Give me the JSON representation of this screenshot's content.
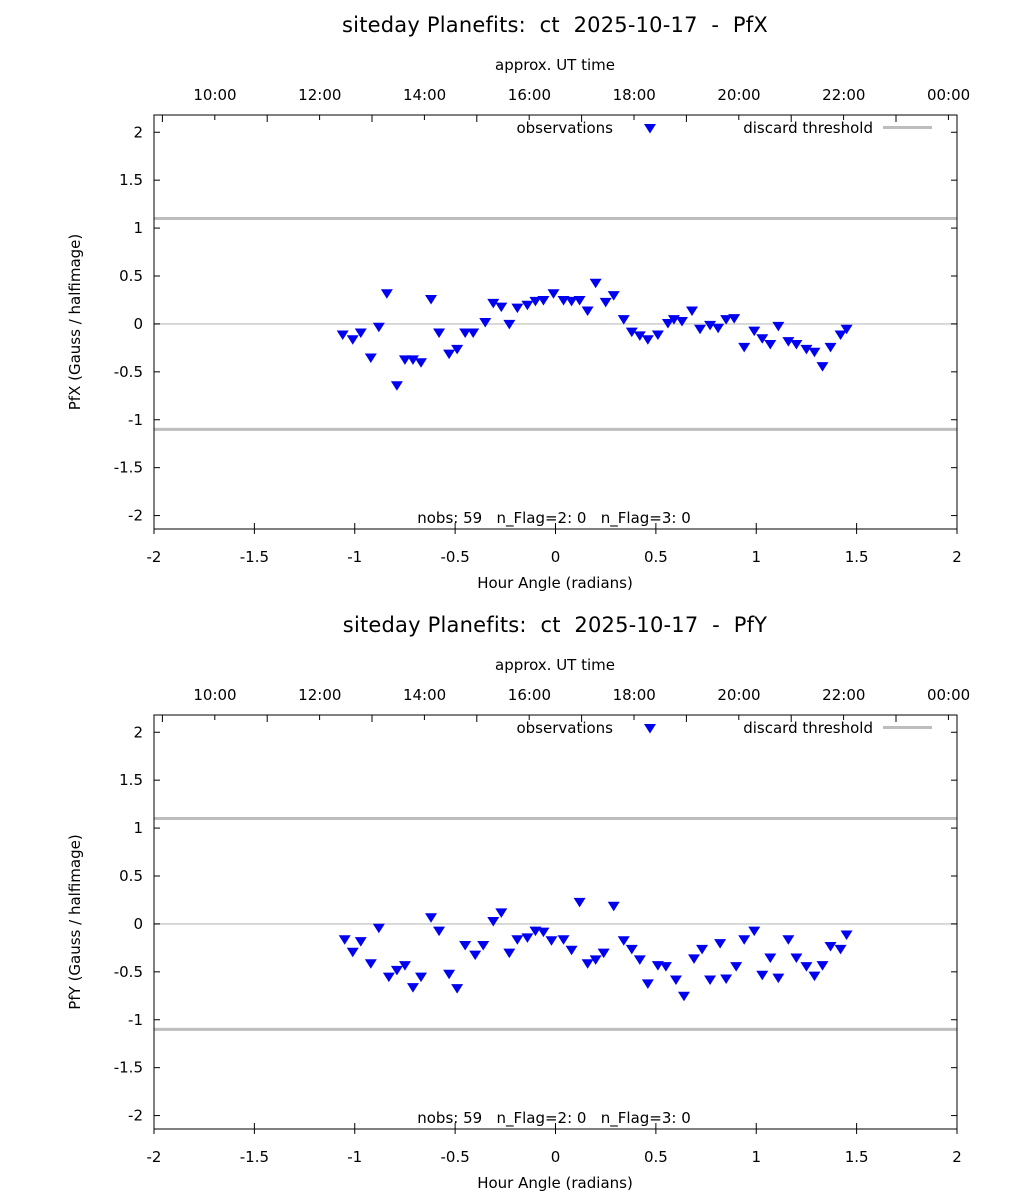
{
  "page": {
    "background_color": "#ffffff"
  },
  "colors": {
    "marker_blue": "#0000f0",
    "threshold_gray": "#bdbdbd",
    "zero_line_gray": "#c8c8c8",
    "axis_black": "#000000"
  },
  "charts": [
    {
      "title": "siteday Planefits:  ct  2025-10-17  -  PfX",
      "top_axis": {
        "label": "approx. UT time",
        "ticks": [
          "10:00",
          "12:00",
          "14:00",
          "16:00",
          "18:00",
          "20:00",
          "22:00",
          "00:00"
        ]
      },
      "x_axis": {
        "label": "Hour Angle (radians)",
        "tick_labels": [
          "-2",
          "-1.5",
          "-1",
          "-0.5",
          "0",
          "0.5",
          "1",
          "1.5",
          "2"
        ]
      },
      "y_axis": {
        "label": "PfX (Gauss / halfimage)",
        "tick_labels": [
          "2",
          "1.5",
          "1",
          "0.5",
          "0",
          "-0.5",
          "-1",
          "-1.5",
          "-2"
        ]
      },
      "legend": {
        "observations_label": "observations",
        "threshold_label": "discard threshold"
      },
      "stats_text": "nobs: 59   n_Flag=2: 0   n_Flag=3: 0",
      "chart_data": {
        "type": "scatter",
        "marker": "triangle-down",
        "xlabel": "Hour Angle (radians)",
        "x2label": "approx. UT time",
        "ylabel": "PfX (Gauss / halfimage)",
        "xlim": [
          -2,
          2
        ],
        "ylim": [
          -2.14,
          2.18
        ],
        "x_tick_values": [
          -2,
          -1.5,
          -1,
          -0.5,
          0,
          0.5,
          1,
          1.5,
          2
        ],
        "y_tick_values": [
          2,
          1.5,
          1,
          0.5,
          0,
          -0.5,
          -1,
          -1.5,
          -2
        ],
        "threshold_lines_y": [
          1.1,
          -1.1
        ],
        "zero_line_y": 0,
        "grid": false,
        "legend_position": "top-inside",
        "series": [
          {
            "name": "observations",
            "points": [
              [
                -1.06,
                -0.11
              ],
              [
                -1.01,
                -0.16
              ],
              [
                -0.97,
                -0.09
              ],
              [
                -0.92,
                -0.35
              ],
              [
                -0.88,
                -0.03
              ],
              [
                -0.84,
                0.32
              ],
              [
                -0.79,
                -0.64
              ],
              [
                -0.75,
                -0.37
              ],
              [
                -0.71,
                -0.37
              ],
              [
                -0.67,
                -0.4
              ],
              [
                -0.62,
                0.26
              ],
              [
                -0.58,
                -0.09
              ],
              [
                -0.53,
                -0.31
              ],
              [
                -0.49,
                -0.26
              ],
              [
                -0.45,
                -0.09
              ],
              [
                -0.41,
                -0.09
              ],
              [
                -0.35,
                0.02
              ],
              [
                -0.31,
                0.22
              ],
              [
                -0.27,
                0.18
              ],
              [
                -0.23,
                0.0
              ],
              [
                -0.19,
                0.17
              ],
              [
                -0.14,
                0.2
              ],
              [
                -0.1,
                0.24
              ],
              [
                -0.06,
                0.25
              ],
              [
                -0.01,
                0.32
              ],
              [
                0.04,
                0.25
              ],
              [
                0.08,
                0.24
              ],
              [
                0.12,
                0.25
              ],
              [
                0.16,
                0.14
              ],
              [
                0.2,
                0.43
              ],
              [
                0.25,
                0.23
              ],
              [
                0.29,
                0.3
              ],
              [
                0.34,
                0.05
              ],
              [
                0.38,
                -0.08
              ],
              [
                0.42,
                -0.12
              ],
              [
                0.46,
                -0.16
              ],
              [
                0.51,
                -0.11
              ],
              [
                0.56,
                0.01
              ],
              [
                0.59,
                0.05
              ],
              [
                0.63,
                0.03
              ],
              [
                0.68,
                0.14
              ],
              [
                0.72,
                -0.05
              ],
              [
                0.77,
                -0.01
              ],
              [
                0.81,
                -0.04
              ],
              [
                0.85,
                0.05
              ],
              [
                0.89,
                0.06
              ],
              [
                0.94,
                -0.24
              ],
              [
                0.99,
                -0.07
              ],
              [
                1.03,
                -0.15
              ],
              [
                1.07,
                -0.21
              ],
              [
                1.11,
                -0.02
              ],
              [
                1.16,
                -0.18
              ],
              [
                1.2,
                -0.21
              ],
              [
                1.25,
                -0.26
              ],
              [
                1.29,
                -0.29
              ],
              [
                1.33,
                -0.44
              ],
              [
                1.37,
                -0.24
              ],
              [
                1.42,
                -0.11
              ],
              [
                1.45,
                -0.05
              ]
            ]
          }
        ]
      }
    },
    {
      "title": "siteday Planefits:  ct  2025-10-17  -  PfY",
      "top_axis": {
        "label": "approx. UT time",
        "ticks": [
          "10:00",
          "12:00",
          "14:00",
          "16:00",
          "18:00",
          "20:00",
          "22:00",
          "00:00"
        ]
      },
      "x_axis": {
        "label": "Hour Angle (radians)",
        "tick_labels": [
          "-2",
          "-1.5",
          "-1",
          "-0.5",
          "0",
          "0.5",
          "1",
          "1.5",
          "2"
        ]
      },
      "y_axis": {
        "label": "PfY (Gauss / halfimage)",
        "tick_labels": [
          "2",
          "1.5",
          "1",
          "0.5",
          "0",
          "-0.5",
          "-1",
          "-1.5",
          "-2"
        ]
      },
      "legend": {
        "observations_label": "observations",
        "threshold_label": "discard threshold"
      },
      "stats_text": "nobs: 59   n_Flag=2: 0   n_Flag=3: 0",
      "chart_data": {
        "type": "scatter",
        "marker": "triangle-down",
        "xlabel": "Hour Angle (radians)",
        "x2label": "approx. UT time",
        "ylabel": "PfY (Gauss / halfimage)",
        "xlim": [
          -2,
          2
        ],
        "ylim": [
          -2.14,
          2.18
        ],
        "x_tick_values": [
          -2,
          -1.5,
          -1,
          -0.5,
          0,
          0.5,
          1,
          1.5,
          2
        ],
        "y_tick_values": [
          2,
          1.5,
          1,
          0.5,
          0,
          -0.5,
          -1,
          -1.5,
          -2
        ],
        "threshold_lines_y": [
          1.1,
          -1.1
        ],
        "zero_line_y": 0,
        "grid": false,
        "legend_position": "top-inside",
        "series": [
          {
            "name": "observations",
            "points": [
              [
                -1.05,
                -0.16
              ],
              [
                -1.01,
                -0.29
              ],
              [
                -0.97,
                -0.18
              ],
              [
                -0.92,
                -0.41
              ],
              [
                -0.88,
                -0.04
              ],
              [
                -0.83,
                -0.55
              ],
              [
                -0.79,
                -0.48
              ],
              [
                -0.75,
                -0.43
              ],
              [
                -0.71,
                -0.66
              ],
              [
                -0.67,
                -0.55
              ],
              [
                -0.62,
                0.07
              ],
              [
                -0.58,
                -0.07
              ],
              [
                -0.53,
                -0.52
              ],
              [
                -0.49,
                -0.67
              ],
              [
                -0.45,
                -0.22
              ],
              [
                -0.4,
                -0.32
              ],
              [
                -0.36,
                -0.22
              ],
              [
                -0.31,
                0.03
              ],
              [
                -0.27,
                0.12
              ],
              [
                -0.23,
                -0.3
              ],
              [
                -0.19,
                -0.16
              ],
              [
                -0.14,
                -0.14
              ],
              [
                -0.1,
                -0.07
              ],
              [
                -0.06,
                -0.08
              ],
              [
                -0.02,
                -0.17
              ],
              [
                0.04,
                -0.16
              ],
              [
                0.08,
                -0.27
              ],
              [
                0.12,
                0.23
              ],
              [
                0.16,
                -0.41
              ],
              [
                0.2,
                -0.37
              ],
              [
                0.24,
                -0.3
              ],
              [
                0.29,
                0.19
              ],
              [
                0.34,
                -0.17
              ],
              [
                0.38,
                -0.26
              ],
              [
                0.42,
                -0.37
              ],
              [
                0.46,
                -0.62
              ],
              [
                0.51,
                -0.43
              ],
              [
                0.55,
                -0.44
              ],
              [
                0.6,
                -0.58
              ],
              [
                0.64,
                -0.75
              ],
              [
                0.69,
                -0.36
              ],
              [
                0.73,
                -0.26
              ],
              [
                0.77,
                -0.58
              ],
              [
                0.82,
                -0.2
              ],
              [
                0.85,
                -0.57
              ],
              [
                0.9,
                -0.44
              ],
              [
                0.94,
                -0.16
              ],
              [
                0.99,
                -0.07
              ],
              [
                1.03,
                -0.53
              ],
              [
                1.07,
                -0.35
              ],
              [
                1.11,
                -0.56
              ],
              [
                1.16,
                -0.16
              ],
              [
                1.2,
                -0.35
              ],
              [
                1.25,
                -0.44
              ],
              [
                1.29,
                -0.54
              ],
              [
                1.33,
                -0.43
              ],
              [
                1.37,
                -0.23
              ],
              [
                1.42,
                -0.26
              ],
              [
                1.45,
                -0.11
              ]
            ]
          }
        ]
      }
    }
  ]
}
